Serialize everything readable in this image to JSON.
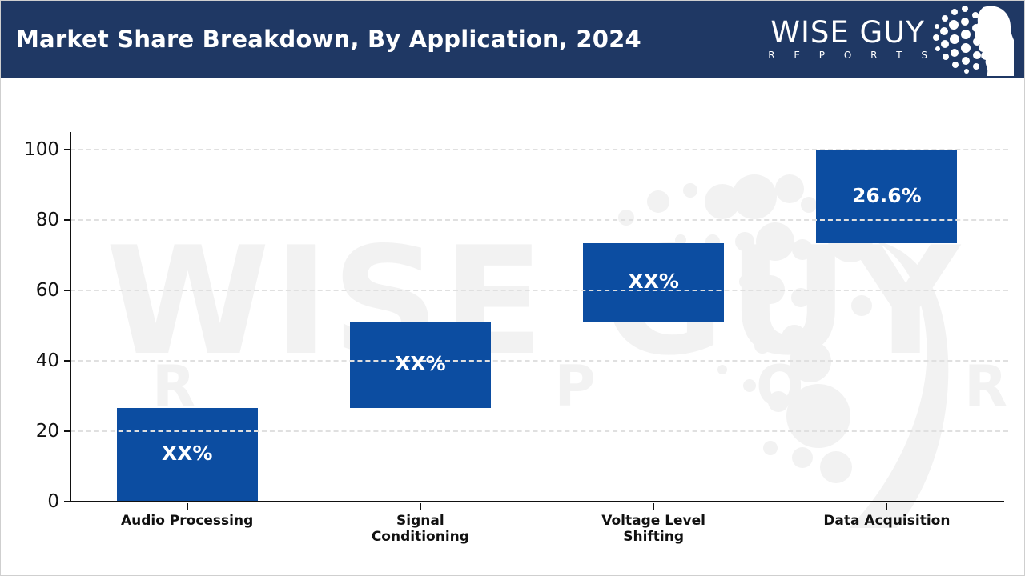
{
  "window": {
    "background_color": "#ffffff",
    "border_color": "#cfcfcf"
  },
  "header": {
    "bg_color": "#1f3864",
    "title": "Market Share Breakdown, By Application, 2024",
    "logo": {
      "line1": "WISE GUY",
      "line2": "R E P O R T S"
    }
  },
  "watermark": {
    "line1": "WISE GUY",
    "line2": "R E P O R T S"
  },
  "chart_data": {
    "type": "bar",
    "subtype": "waterfall",
    "title": "Market Share Breakdown, By Application, 2024",
    "categories": [
      "Audio Processing",
      "Signal Conditioning",
      "Voltage Level Shifting",
      "Data Acquisition"
    ],
    "category_label_lines": [
      [
        "Audio Processing"
      ],
      [
        "Signal",
        "Conditioning"
      ],
      [
        "Voltage Level",
        "Shifting"
      ],
      [
        "Data Acquisition"
      ]
    ],
    "segments": [
      {
        "category": "Audio Processing",
        "start": 0,
        "end": 26.6,
        "value": 26.6,
        "label": "XX%"
      },
      {
        "category": "Signal Conditioning",
        "start": 26.6,
        "end": 51.2,
        "value": 24.6,
        "label": "XX%"
      },
      {
        "category": "Voltage Level Shifting",
        "start": 51.2,
        "end": 73.4,
        "value": 22.2,
        "label": "XX%"
      },
      {
        "category": "Data Acquisition",
        "start": 73.4,
        "end": 100.0,
        "value": 26.6,
        "label": "26.6%"
      }
    ],
    "bar_color": "#0c4da1",
    "bar_label_color": "#ffffff",
    "axis_color": "#111111",
    "grid_color": "#e0e0e0",
    "grid_style": "dashed",
    "grid_over_bars": true,
    "xlabel": "",
    "ylabel": "",
    "ylim": [
      0,
      100
    ],
    "yticks": [
      0,
      20,
      40,
      60,
      80,
      100
    ],
    "legend": "none"
  }
}
